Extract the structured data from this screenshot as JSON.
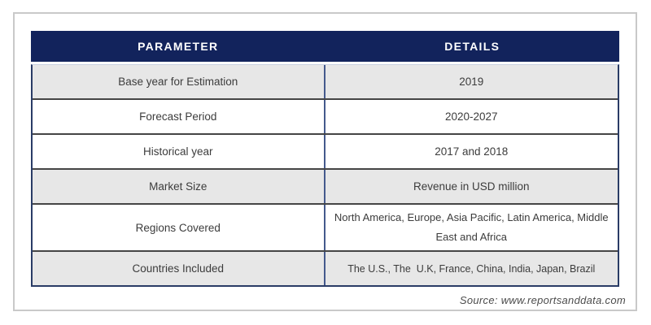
{
  "table": {
    "headers": [
      "PARAMETER",
      "DETAILS"
    ],
    "rows": [
      {
        "parameter": "Base year for Estimation",
        "details": "2019"
      },
      {
        "parameter": "Forecast Period",
        "details": "2020-2027"
      },
      {
        "parameter": "Historical year",
        "details": "2017 and 2018"
      },
      {
        "parameter": "Market Size",
        "details": "Revenue in USD million"
      },
      {
        "parameter": "Regions Covered",
        "details": "North America, Europe, Asia Pacific, Latin America, Middle East and Africa"
      },
      {
        "parameter": "Countries Included",
        "details": "The U.S., The  U.K, France, China, India, Japan, Brazil"
      }
    ]
  },
  "footer": {
    "source": "Source: www.reportsanddata.com"
  },
  "colors": {
    "header_background": "#12235C",
    "header_text": "#FFFFFF",
    "shaded_row_background": "#E7E7E7",
    "plain_row_background": "#FFFFFF",
    "table_border": "#2A3C66",
    "column_divider": "#44598C",
    "row_separator": "#454545",
    "body_text": "#3C3C3C",
    "source_text": "#4C4C4C",
    "frame_border": "#C9C9C9"
  }
}
